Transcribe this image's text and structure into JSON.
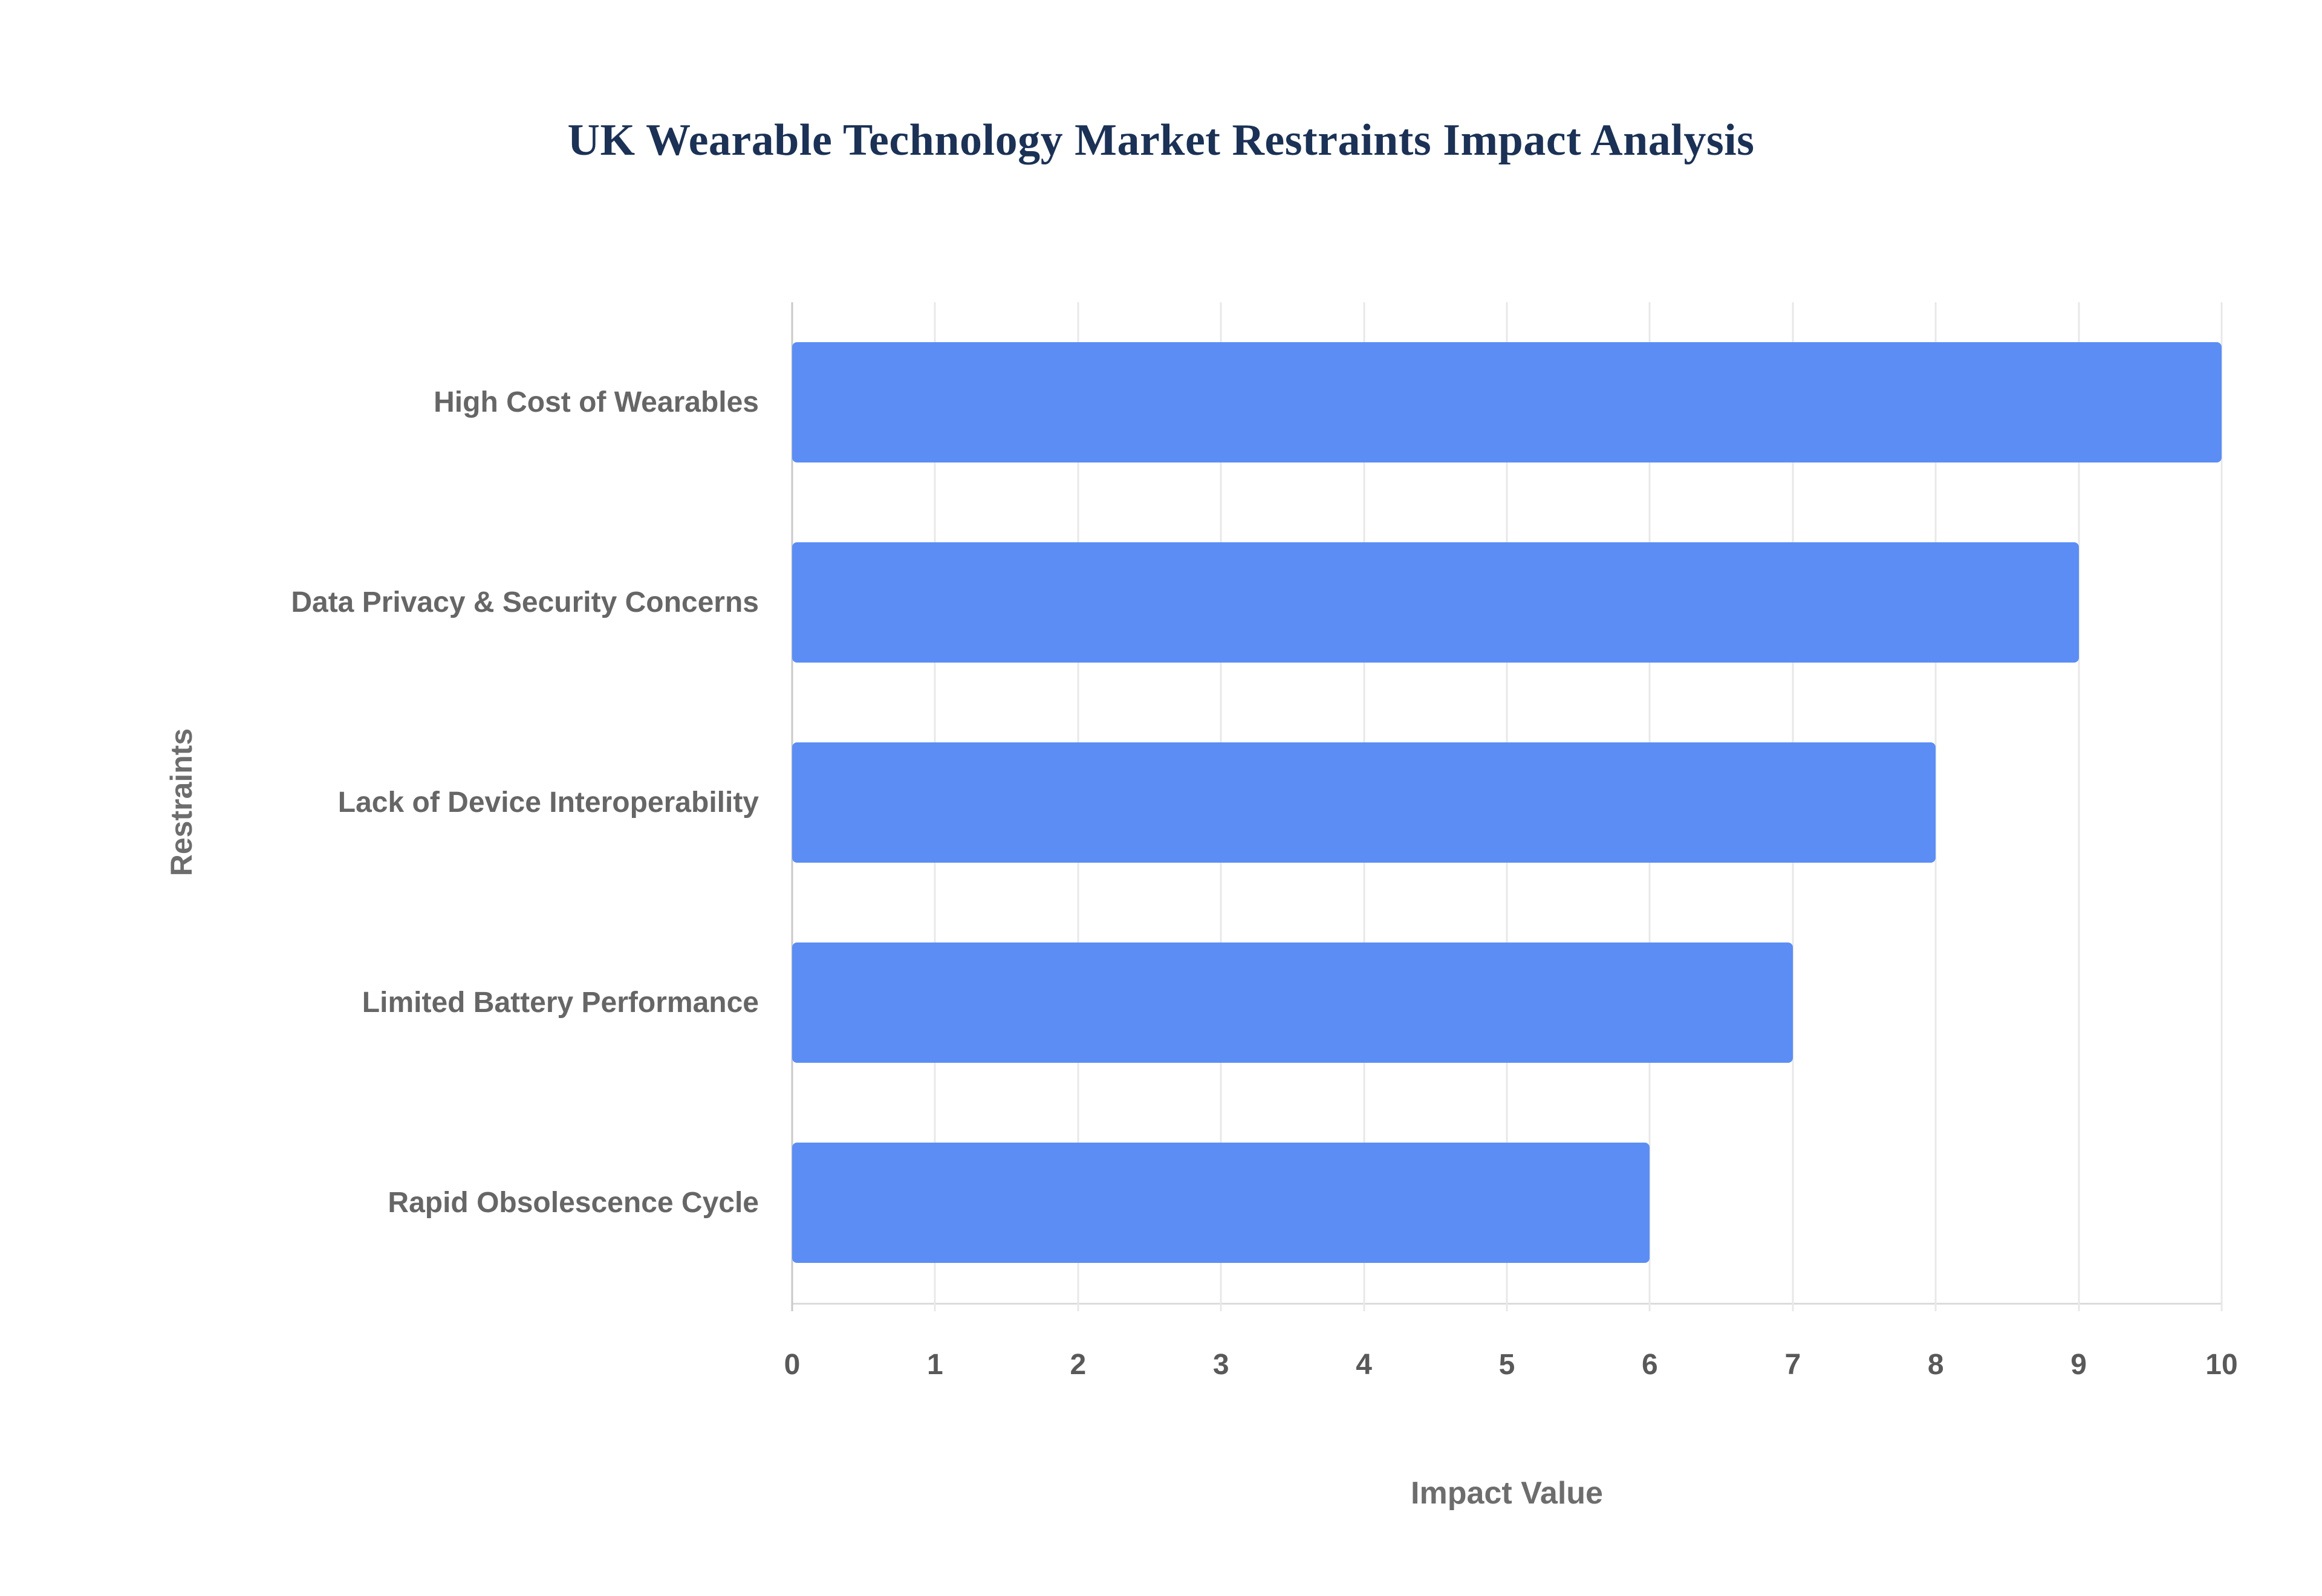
{
  "chart_data": {
    "type": "bar",
    "orientation": "horizontal",
    "title": "UK Wearable Technology Market Restraints Impact Analysis",
    "categories": [
      "High Cost of Wearables",
      "Data Privacy & Security Concerns",
      "Lack of Device Interoperability",
      "Limited Battery Performance",
      "Rapid Obsolescence Cycle"
    ],
    "values": [
      10,
      9,
      8,
      7,
      6
    ],
    "xlabel": "Impact Value",
    "ylabel": "Restraints",
    "xlim": [
      0,
      10
    ],
    "xticks": [
      0,
      1,
      2,
      3,
      4,
      5,
      6,
      7,
      8,
      9,
      10
    ],
    "grid": true,
    "legend": false,
    "bar_color": "#5b8df5",
    "grid_color": "#e8e8e8",
    "axis_color": "#c9c9c9",
    "title_color": "#1b3155",
    "label_color": "#666666",
    "axis_title_color": "#6d6d6d",
    "background_color": "#ffffff"
  }
}
